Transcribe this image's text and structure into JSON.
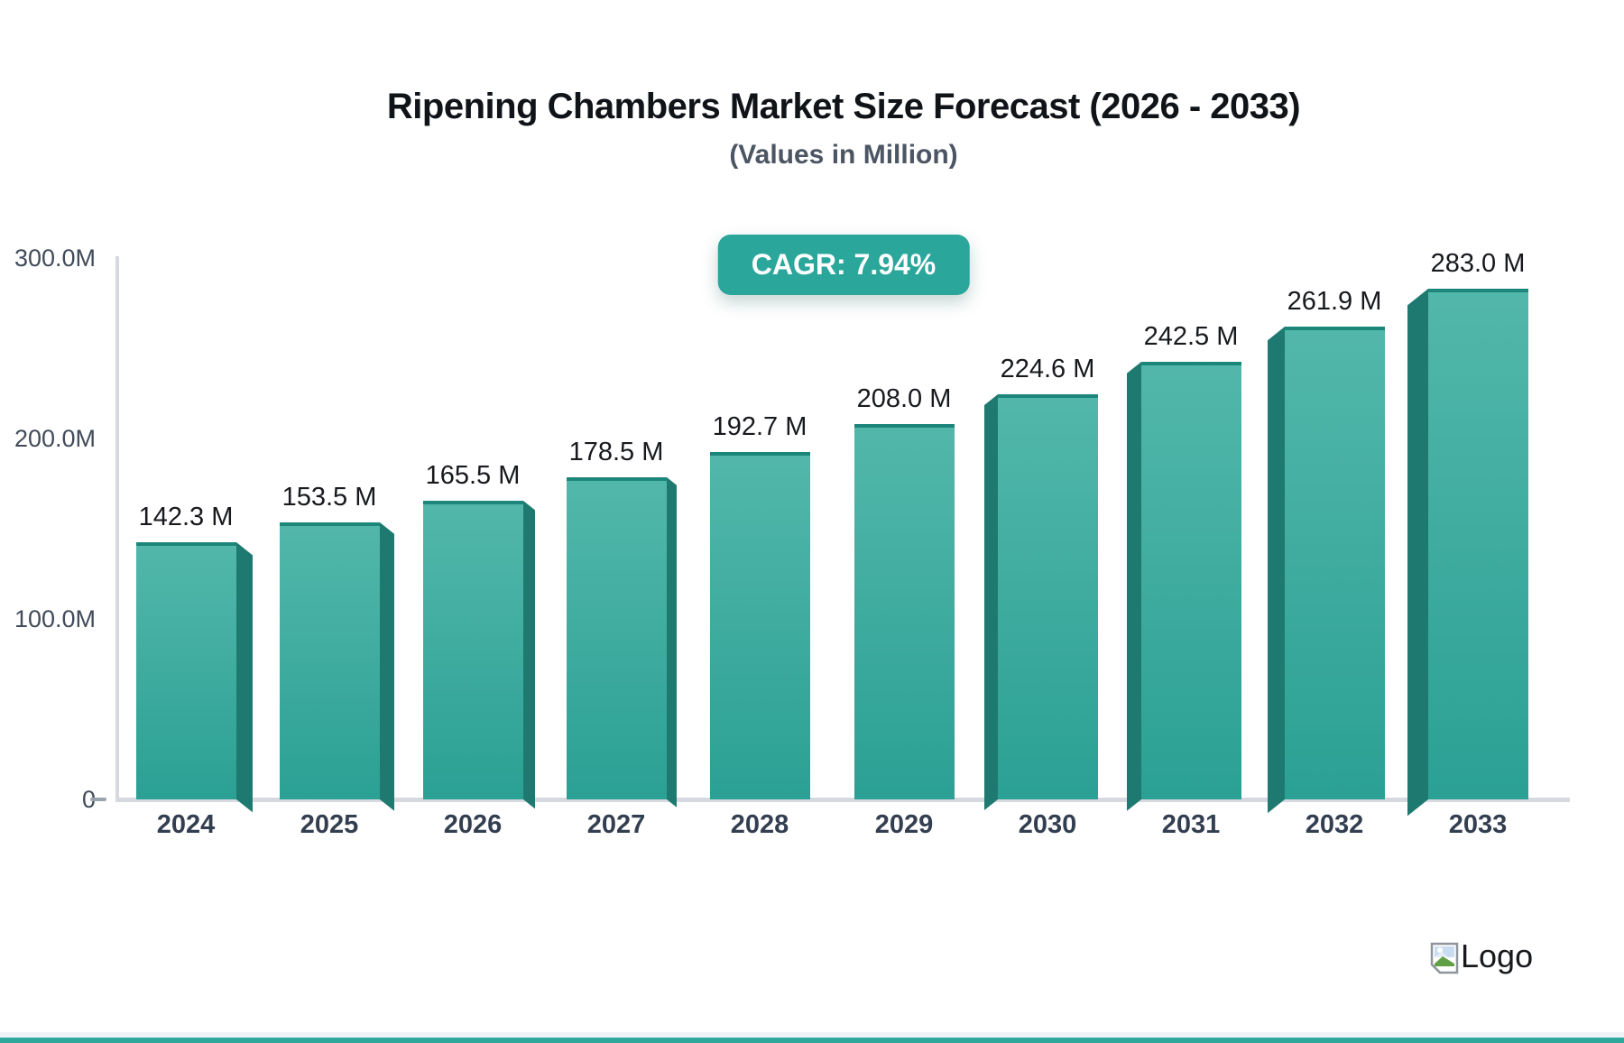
{
  "title": "Ripening Chambers Market Size Forecast (2026 - 2033)",
  "subtitle": "(Values in Million)",
  "badge": {
    "label": "CAGR: 7.94%",
    "bg": "#2aa69b",
    "text_color": "#ffffff"
  },
  "logo": {
    "alt_text": "Logo",
    "icon": "broken-image-icon"
  },
  "chart_data": {
    "type": "bar",
    "title": "Ripening Chambers Market Size Forecast (2026 - 2033)",
    "subtitle": "(Values in Million)",
    "categories": [
      "2024",
      "2025",
      "2026",
      "2027",
      "2028",
      "2029",
      "2030",
      "2031",
      "2032",
      "2033"
    ],
    "values": [
      142.3,
      153.5,
      165.5,
      178.5,
      192.7,
      208.0,
      224.6,
      242.5,
      261.9,
      283.0
    ],
    "value_labels": [
      "142.3 M",
      "153.5 M",
      "165.5 M",
      "178.5 M",
      "192.7 M",
      "208.0 M",
      "224.6 M",
      "242.5 M",
      "261.9 M",
      "283.0 M"
    ],
    "unit": "Million",
    "annotation": "CAGR: 7.94%",
    "xlabel": "",
    "ylabel": "",
    "ylim": [
      0,
      300
    ],
    "y_ticks": [
      {
        "label": "300.0M",
        "value": 300
      },
      {
        "label": "200.0M",
        "value": 200
      },
      {
        "label": "100.0M",
        "value": 100
      },
      {
        "label": "0",
        "value": 0
      }
    ],
    "grid": false,
    "legend": false,
    "bar_style": "3d-extruded",
    "colors": {
      "bar_top": "#53b7ab",
      "bar_bottom": "#2ba094",
      "bar_top_edge": "#1d867b",
      "bar_side": "#1e7a71",
      "axis": "#d6d9df",
      "value_label": "#17191d",
      "x_label": "#333f50",
      "y_label": "#414b59",
      "badge_bg": "#2aa69b",
      "bottom_strip": "#2ea89a"
    }
  }
}
